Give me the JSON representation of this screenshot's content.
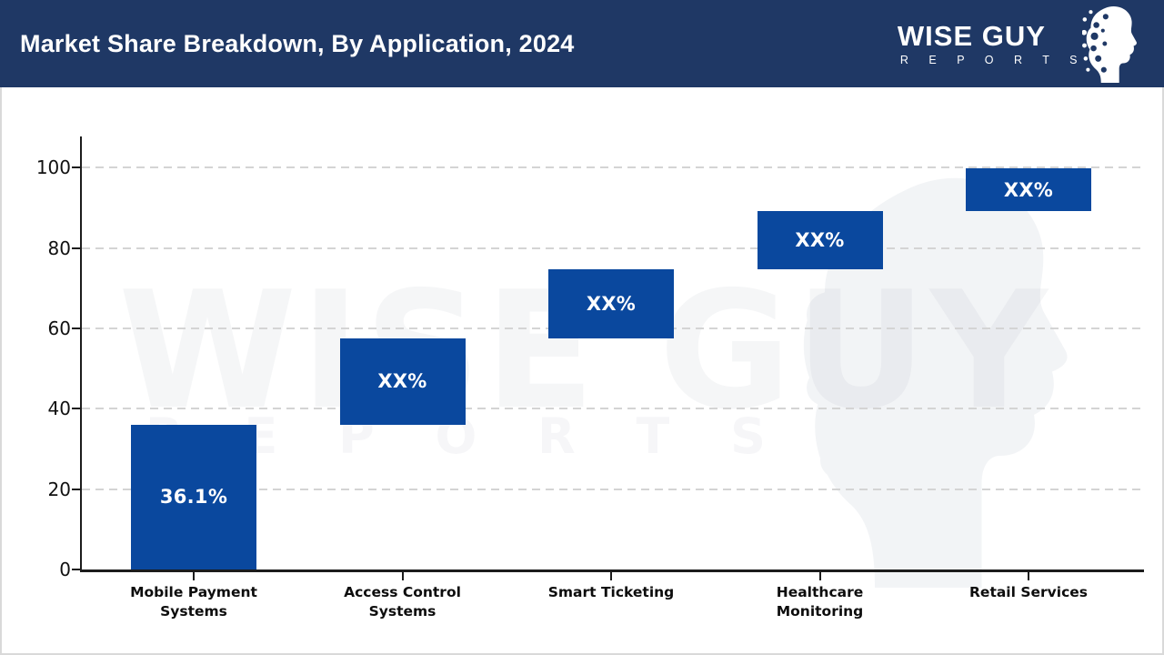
{
  "header": {
    "title": "Market Share Breakdown, By Application, 2024",
    "logo": {
      "line1": "WISE GUY",
      "line2": "R E P O R T S"
    }
  },
  "watermark": {
    "line1": "WISE GUY",
    "line2": "R E P O R T S"
  },
  "chart_data": {
    "type": "bar",
    "subtype": "waterfall",
    "title": "Market Share Breakdown, By Application, 2024",
    "categories": [
      "Mobile Payment Systems",
      "Access Control Systems",
      "Smart Ticketing",
      "Healthcare Monitoring",
      "Retail Services"
    ],
    "category_lines": [
      [
        "Mobile Payment",
        "Systems"
      ],
      [
        "Access Control",
        "Systems"
      ],
      [
        "Smart Ticketing"
      ],
      [
        "Healthcare",
        "Monitoring"
      ],
      [
        "Retail Services"
      ]
    ],
    "segments": [
      {
        "label": "36.1%",
        "start": 0,
        "end": 36.1
      },
      {
        "label": "XX%",
        "start": 36.1,
        "end": 57.5
      },
      {
        "label": "XX%",
        "start": 57.5,
        "end": 74.7
      },
      {
        "label": "XX%",
        "start": 74.7,
        "end": 89.2
      },
      {
        "label": "XX%",
        "start": 89.2,
        "end": 99.8
      }
    ],
    "values": [
      36.1,
      21.4,
      17.2,
      14.5,
      10.6
    ],
    "yticks": [
      0,
      20,
      40,
      60,
      80,
      100
    ],
    "ylim": [
      0,
      100
    ],
    "xlabel": "",
    "ylabel": "",
    "legend": "none",
    "grid": "horizontal-dashed",
    "bar_color": "#0a489e",
    "header_color": "#1f3865",
    "axis_color": "#1c1c1c",
    "grid_color": "#d4d4d4"
  }
}
